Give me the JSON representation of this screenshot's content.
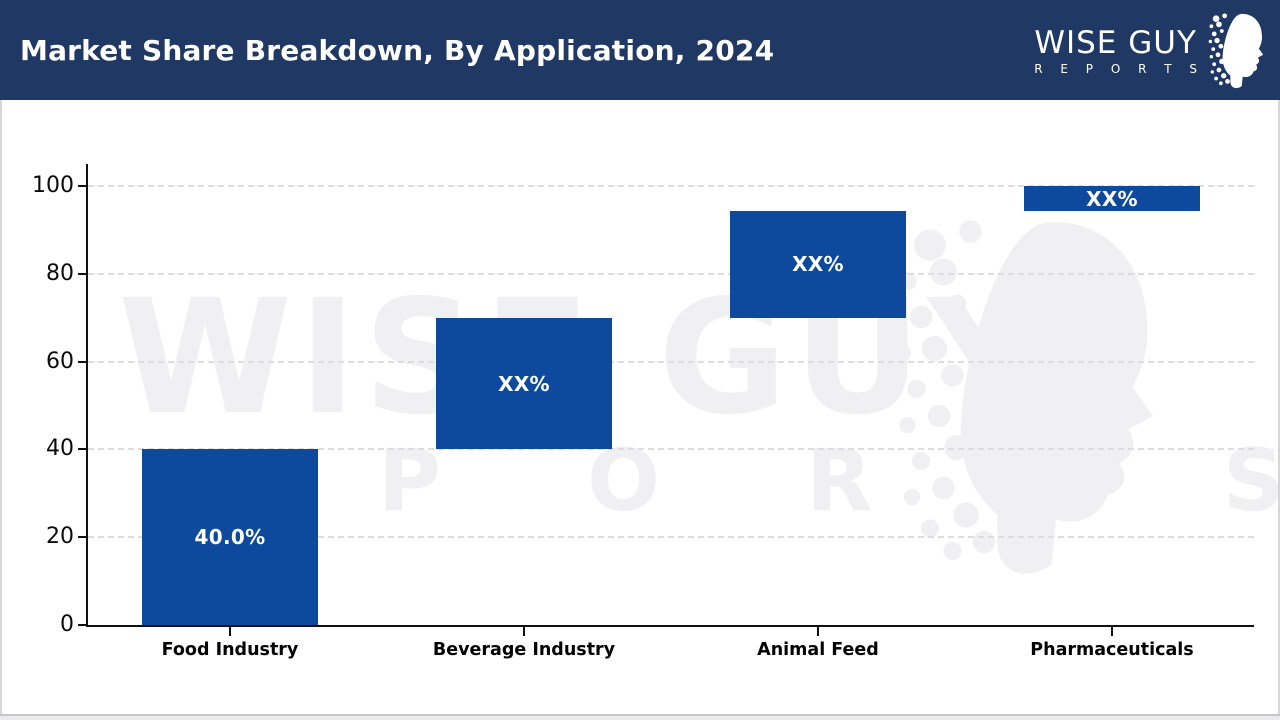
{
  "header": {
    "title": "Market Share Breakdown, By Application, 2024",
    "logo": {
      "primary": "WISE GUY",
      "secondary": "R E P O R T S"
    }
  },
  "watermark": {
    "primary": "WISE GUY",
    "secondary": "P O R T S"
  },
  "colors": {
    "header_bg": "#1f3864",
    "bar": "#0d4a9e",
    "gridline": "#dddddd",
    "axis": "#111111",
    "watermark": "#f0f0f2"
  },
  "chart_data": {
    "type": "bar",
    "variant": "waterfall",
    "title": "Market Share Breakdown, By Application, 2024",
    "categories": [
      "Food Industry",
      "Beverage Industry",
      "Animal Feed",
      "Pharmaceuticals"
    ],
    "segments": [
      {
        "category": "Food Industry",
        "start": 0,
        "end": 40,
        "label": "40.0%"
      },
      {
        "category": "Beverage Industry",
        "start": 40,
        "end": 70,
        "label": "XX%"
      },
      {
        "category": "Animal Feed",
        "start": 70,
        "end": 94.3,
        "label": "XX%"
      },
      {
        "category": "Pharmaceuticals",
        "start": 94.3,
        "end": 100,
        "label": "XX%"
      }
    ],
    "xlabel": "",
    "ylabel": "",
    "yticks": [
      0,
      20,
      40,
      60,
      80,
      100
    ],
    "ylim": [
      0,
      105
    ],
    "grid": "horizontal-dashed",
    "legend": "none"
  }
}
